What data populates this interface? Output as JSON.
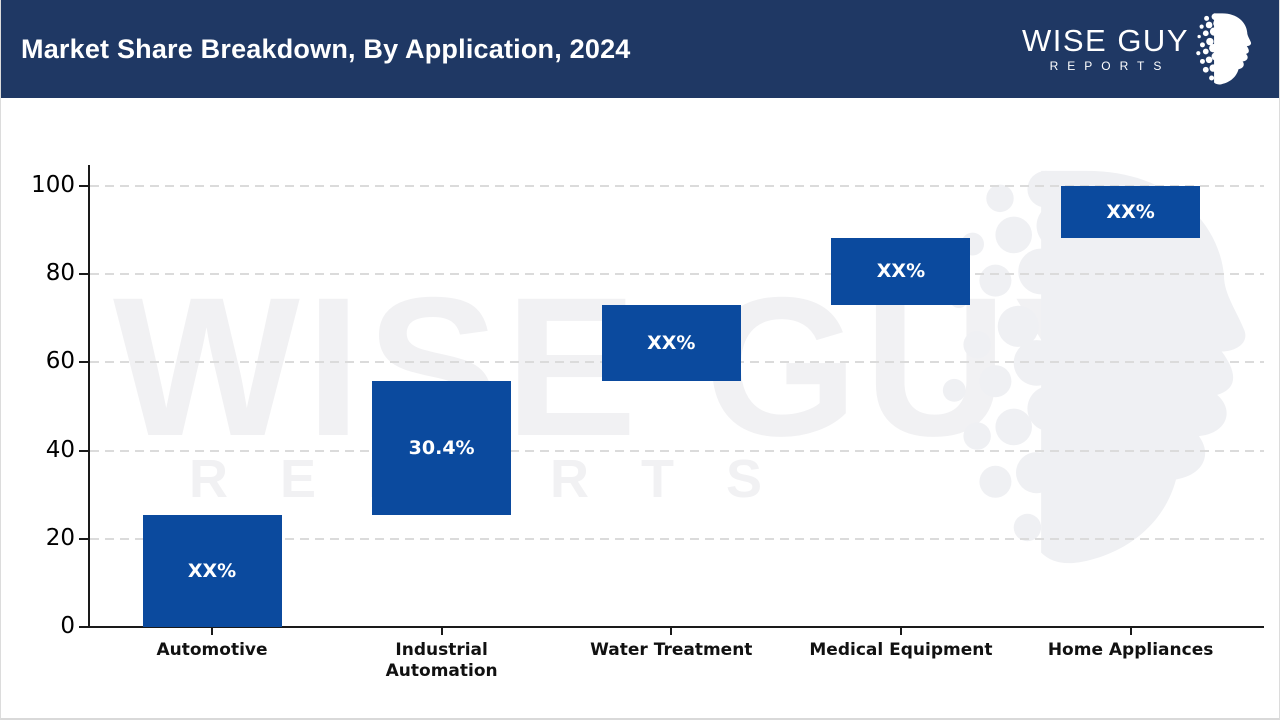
{
  "header": {
    "title": "Market Share Breakdown, By Application, 2024",
    "bg_color": "#1f3864",
    "logo": {
      "line1": "WISE GUY",
      "line2": "REPORTS"
    }
  },
  "watermark": {
    "line1": "WISE GUY",
    "line2": "REPORTS"
  },
  "chart_data": {
    "type": "bar",
    "subtype": "waterfall-stacked-breakdown",
    "title": "Market Share Breakdown, By Application, 2024",
    "xlabel": "",
    "ylabel": "",
    "ylim": [
      0,
      105
    ],
    "yticks": [
      0,
      20,
      40,
      60,
      80,
      100
    ],
    "grid": "horizontal-dashed",
    "legend": "none",
    "bar_color": "#0b4a9e",
    "categories": [
      "Automotive",
      "Industrial\nAutomation",
      "Water Treatment",
      "Medical Equipment",
      "Home Appliances"
    ],
    "segments": [
      {
        "category": "Automotive",
        "start": 0,
        "end": 25.3,
        "label": "XX%"
      },
      {
        "category": "Industrial Automation",
        "start": 25.3,
        "end": 55.7,
        "label": "30.4%"
      },
      {
        "category": "Water Treatment",
        "start": 55.7,
        "end": 73.0,
        "label": "XX%"
      },
      {
        "category": "Medical Equipment",
        "start": 73.0,
        "end": 88.3,
        "label": "XX%"
      },
      {
        "category": "Home Appliances",
        "start": 88.3,
        "end": 100,
        "label": "XX%"
      }
    ]
  }
}
